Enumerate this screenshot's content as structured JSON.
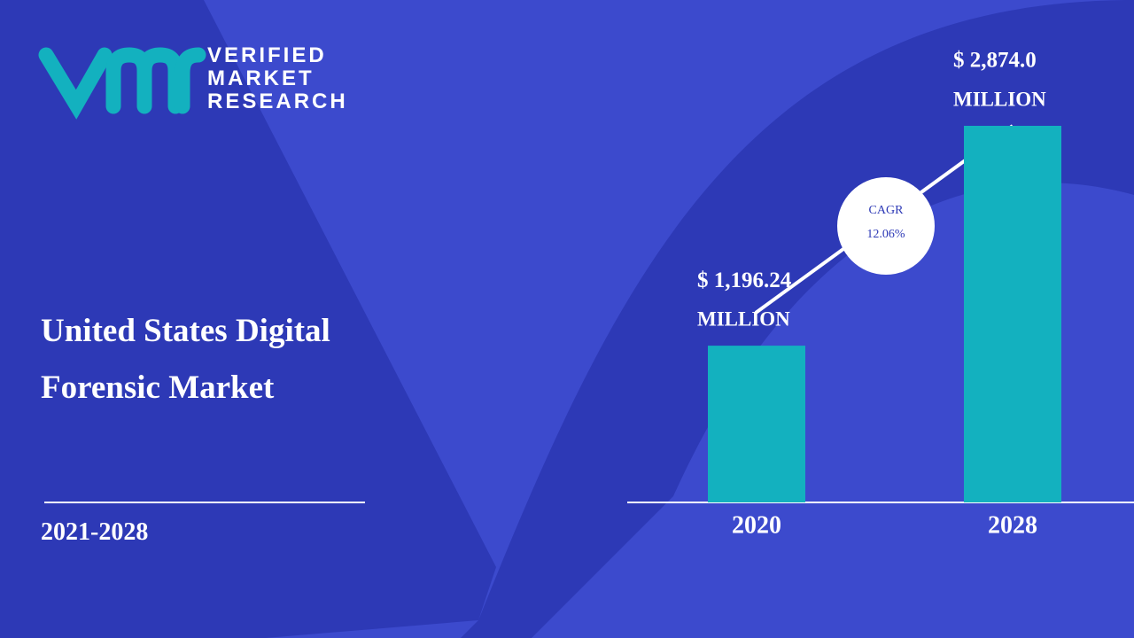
{
  "brand": {
    "lines": [
      "VERIFIED",
      "MARKET",
      "RESEARCH"
    ]
  },
  "chart_data": {
    "type": "bar",
    "title": "United States Digital Forensic Market",
    "period": "2021-2028",
    "categories": [
      "2020",
      "2028"
    ],
    "values": [
      1196.24,
      2874.0
    ],
    "value_labels": [
      "$ 1,196.24",
      "$ 2,874.0"
    ],
    "unit": "MILLION",
    "color": "#13b1bf",
    "cagr": {
      "label": "CAGR",
      "value": "12.06%"
    }
  }
}
